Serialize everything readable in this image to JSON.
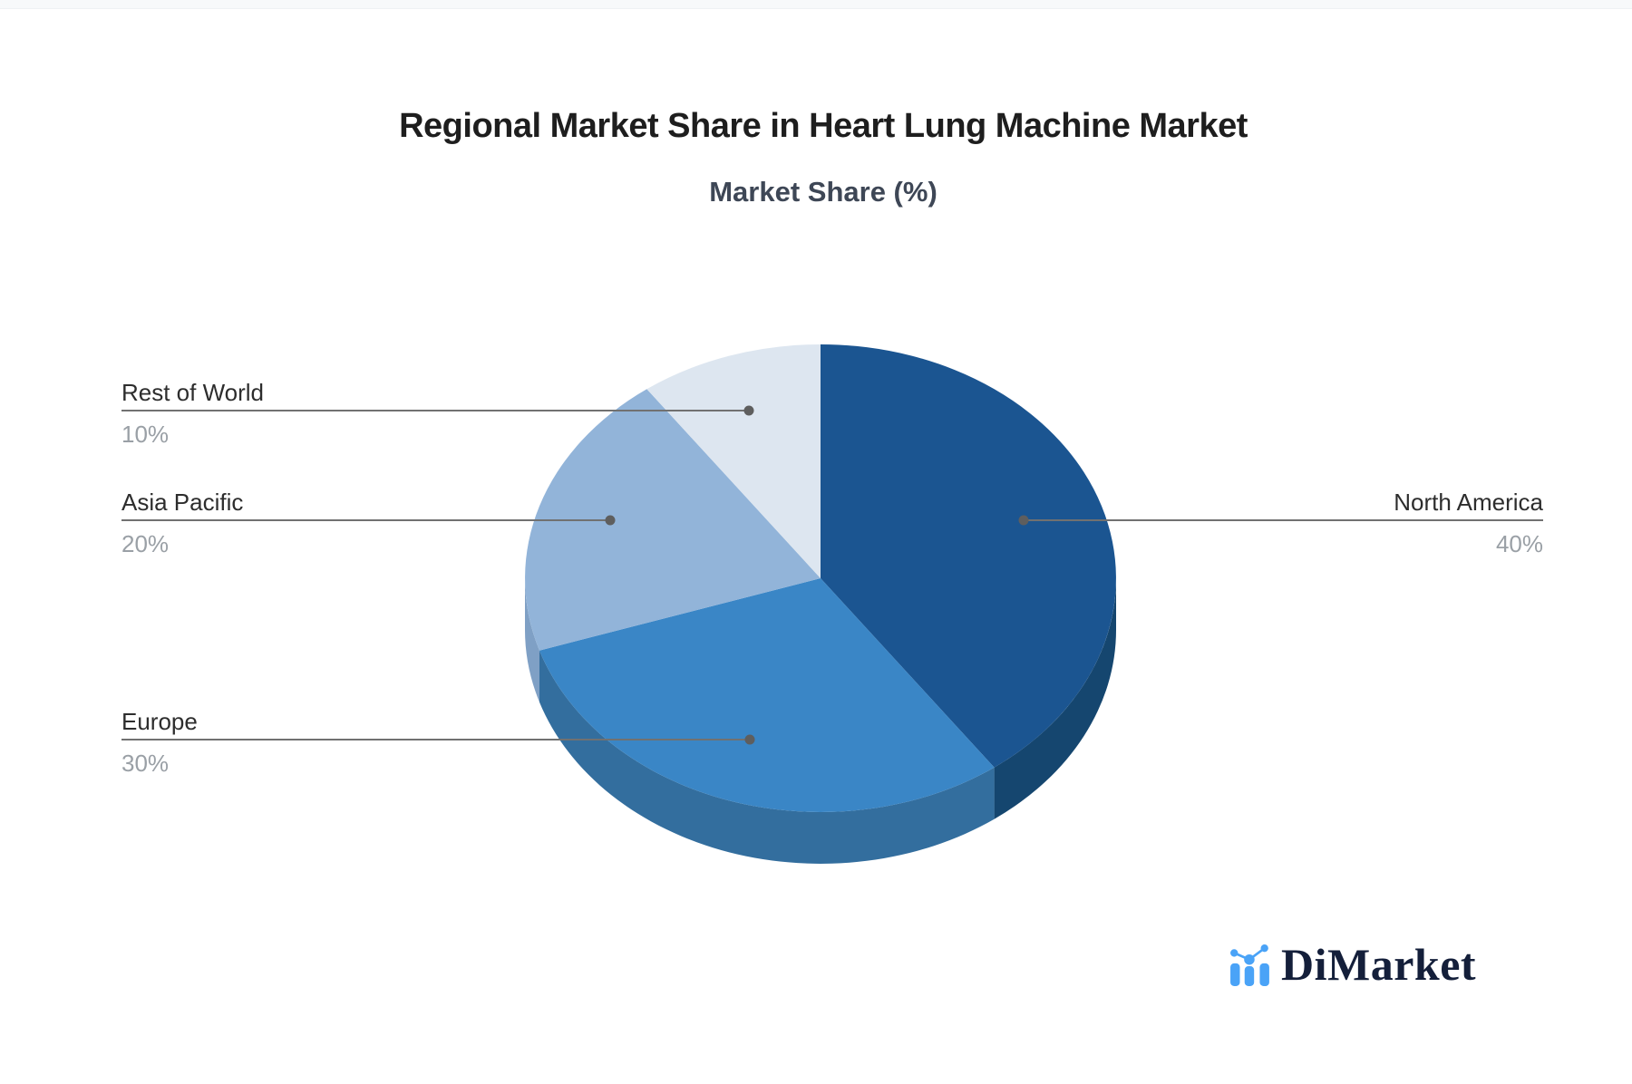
{
  "page": {
    "colors": {
      "background": "#ffffff",
      "top_strip": "#f7f9fa",
      "title": "#1e1e1e",
      "subtitle": "#3e4756",
      "callout_label": "#2d2d2d",
      "callout_value": "#9aa0a6",
      "connector": "#717171",
      "connector_dot": "#5e5e5e",
      "logo_text": "#141f3a",
      "logo_accent": "#4aa3f7"
    }
  },
  "chart_data": {
    "type": "pie",
    "style": "3d",
    "title": "Regional Market Share in Heart Lung Machine Market",
    "subtitle": "Market Share (%)",
    "unit": "%",
    "start_angle_deg": 0,
    "direction": "clockwise",
    "label_style": "callout-lines",
    "legend_position": "none",
    "slices": [
      {
        "label": "North America",
        "value": 40,
        "value_text": "40%",
        "color": "#1b5591",
        "side_color": "#15466f",
        "callout_side": "right"
      },
      {
        "label": "Europe",
        "value": 30,
        "value_text": "30%",
        "color": "#3a86c6",
        "side_color": "#336e9e",
        "callout_side": "left"
      },
      {
        "label": "Asia Pacific",
        "value": 20,
        "value_text": "20%",
        "color": "#92b4d9",
        "side_color": "#7fa0c5",
        "callout_side": "left"
      },
      {
        "label": "Rest of World",
        "value": 10,
        "value_text": "10%",
        "color": "#dde6f0",
        "side_color": "#c3d0e0",
        "callout_side": "left"
      }
    ]
  },
  "branding": {
    "logo_text": "DiMarket",
    "logo_icon": "bar-line-chart-icon"
  }
}
